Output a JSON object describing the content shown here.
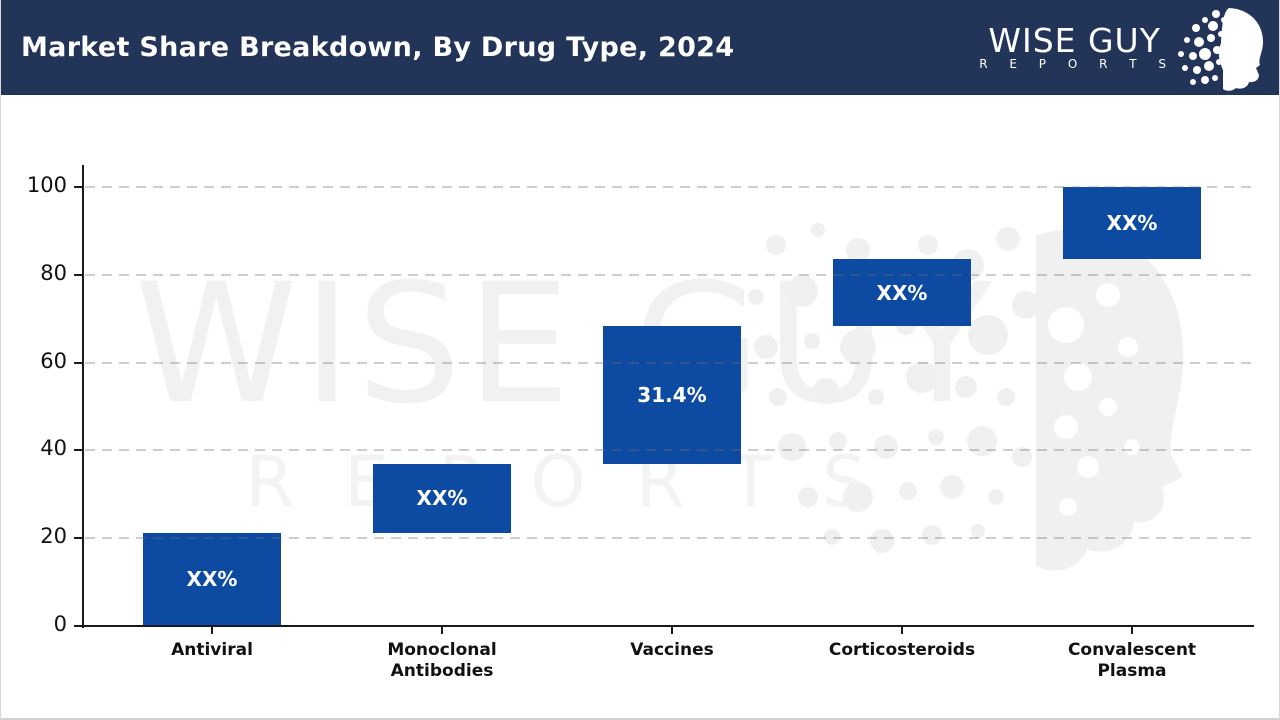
{
  "header": {
    "title": "Market Share Breakdown, By Drug Type, 2024",
    "bg_color": "#233459",
    "logo": {
      "line1": "WISE GUY",
      "line2": "R E P O R T S"
    }
  },
  "watermark": {
    "line1": "WISE GUY",
    "line2": "REPORTS"
  },
  "chart_data": {
    "type": "bar",
    "subtype": "waterfall",
    "title": "Market Share Breakdown, By Drug Type, 2024",
    "categories": [
      [
        "Antiviral"
      ],
      [
        "Monoclonal",
        "Antibodies"
      ],
      [
        "Vaccines"
      ],
      [
        "Corticosteroids"
      ],
      [
        "Convalescent",
        "Plasma"
      ]
    ],
    "segments": [
      {
        "category": "Antiviral",
        "start": 0,
        "end": 21.2,
        "value": 21.2,
        "label": "XX%"
      },
      {
        "category": "Monoclonal Antibodies",
        "start": 21.2,
        "end": 36.9,
        "value": 15.7,
        "label": "XX%"
      },
      {
        "category": "Vaccines",
        "start": 36.9,
        "end": 68.3,
        "value": 31.4,
        "label": "31.4%"
      },
      {
        "category": "Corticosteroids",
        "start": 68.3,
        "end": 83.6,
        "value": 15.3,
        "label": "XX%"
      },
      {
        "category": "Convalescent Plasma",
        "start": 83.6,
        "end": 100,
        "value": 16.4,
        "label": "XX%"
      }
    ],
    "ylim": [
      0,
      100
    ],
    "yticks": [
      0,
      20,
      40,
      60,
      80,
      100
    ],
    "grid": {
      "horizontal": true,
      "style": "dashed"
    },
    "legend": false,
    "bar_color": "#0D4AA2",
    "bar_label_color": "#FFFFFF",
    "axis_color": "#1a1a1a"
  }
}
